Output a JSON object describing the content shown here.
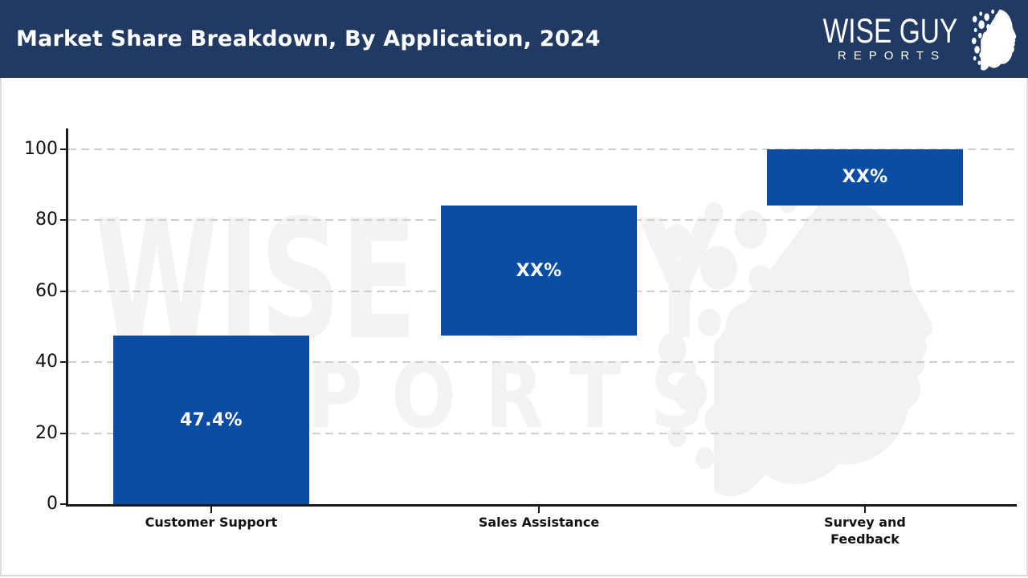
{
  "header": {
    "title": "Market Share Breakdown, By Application, 2024",
    "bg_color": "#213a63",
    "logo": {
      "wordmark": "WISE GUY",
      "subtext": "REPORTS"
    }
  },
  "watermark": {
    "wordmark": "WISE GUY",
    "subtext": "REPORTS"
  },
  "chart_data": {
    "type": "bar",
    "subtype": "floating-waterfall",
    "title": "Market Share Breakdown, By Application, 2024",
    "categories": [
      "Customer Support",
      "Sales Assistance",
      "Survey and Feedback"
    ],
    "category_lines": [
      [
        "Customer Support"
      ],
      [
        "Sales Assistance"
      ],
      [
        "Survey and",
        "Feedback"
      ]
    ],
    "bars": [
      {
        "category": "Customer Support",
        "start": 0,
        "end": 47.4,
        "label": "47.4%"
      },
      {
        "category": "Sales Assistance",
        "start": 47.4,
        "end": 84.2,
        "label": "XX%"
      },
      {
        "category": "Survey and Feedback",
        "start": 84.2,
        "end": 100,
        "label": "XX%"
      }
    ],
    "yticks": [
      0,
      20,
      40,
      60,
      80,
      100
    ],
    "ylim": [
      0,
      107
    ],
    "xlabel": "",
    "ylabel": "",
    "grid": "horizontal-dashed",
    "legend": "none",
    "colors": {
      "bar": "#0b4da2",
      "bar_label": "#ffffff",
      "axis": "#1a1a1a",
      "gridline": "#cfcfcf",
      "tick_label": "#111111"
    }
  }
}
